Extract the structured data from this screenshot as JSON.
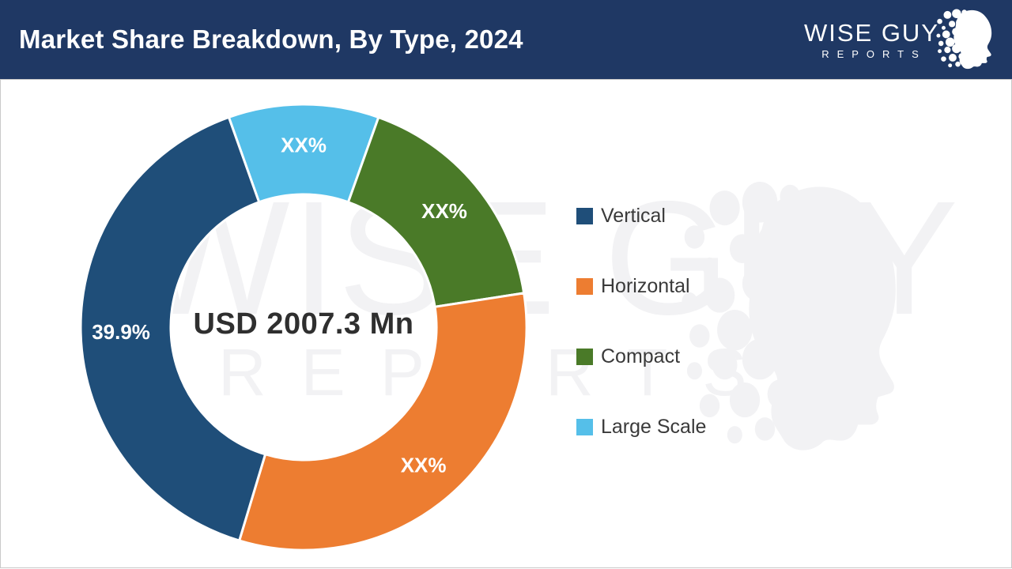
{
  "header": {
    "title": "Market Share Breakdown, By Type, 2024",
    "bg_color": "#1F3864",
    "logo": {
      "line1": "WISE GUY",
      "line2": "REPORTS"
    }
  },
  "watermark": {
    "line1": "WISE GUY",
    "line2": "REPORTS"
  },
  "chart_data": {
    "type": "pie",
    "subtype": "donut",
    "title": "Market Share Breakdown, By Type, 2024",
    "center_label": "USD 2007.3 Mn",
    "start_angle_deg": -19.6,
    "legend_position": "right",
    "segments": [
      {
        "name": "Large Scale",
        "display_label": "XX%",
        "value_pct": 10.9,
        "color": "#55BFE9"
      },
      {
        "name": "Compact",
        "display_label": "XX%",
        "value_pct": 17.1,
        "color": "#4A7A28"
      },
      {
        "name": "Horizontal",
        "display_label": "XX%",
        "value_pct": 32.1,
        "color": "#ED7D31"
      },
      {
        "name": "Vertical",
        "display_label": "39.9%",
        "value_pct": 39.9,
        "color": "#1F4E79"
      }
    ],
    "legend": [
      {
        "label": "Vertical",
        "color": "#1F4E79"
      },
      {
        "label": "Horizontal",
        "color": "#ED7D31"
      },
      {
        "label": "Compact",
        "color": "#4A7A28"
      },
      {
        "label": "Large Scale",
        "color": "#55BFE9"
      }
    ]
  }
}
